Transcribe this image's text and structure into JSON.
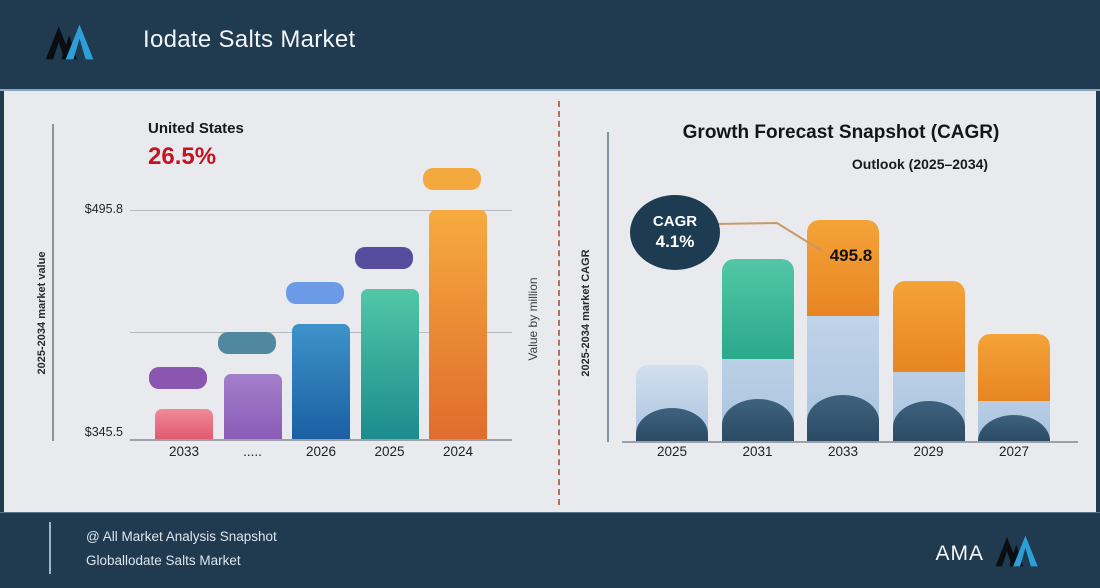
{
  "header": {
    "title": "Iodate Salts Market"
  },
  "left_chart": {
    "region_label": "United States",
    "region_value": "26.5%",
    "y_axis_label": "2025-2034 market value",
    "side_note": "Value by million",
    "y_tick_top": "$495.8",
    "y_tick_bottom": "$345.5"
  },
  "right_chart": {
    "title": "Growth Forecast Snapshot (CAGR)",
    "subtitle": "Outlook (2025–2034)",
    "y_axis_label": "2025-2034 market CAGR",
    "badge_label": "CAGR",
    "badge_value": "4.1%",
    "data_label": "495.8"
  },
  "footer": {
    "credit_line1": "@ All Market Analysis Snapshot",
    "credit_line2": "Globallodate Salts Market",
    "brand": "AMA"
  },
  "colors": {
    "header_bg": "#203a50",
    "panel_bg": "#e9eaed",
    "accent_red": "#c41420",
    "badge_navy": "#1d3c52",
    "connector": "#c9996b",
    "divider_dash": "#b4705a",
    "logo_black": "#0b0e11",
    "logo_blue": "#2d9fd8"
  },
  "chart_data": [
    {
      "type": "bar",
      "title": "United States 2025-2034 market value",
      "categories": [
        "2033",
        ".....",
        "2026",
        "2025",
        "2024"
      ],
      "values": [
        365,
        388,
        421,
        444,
        495.8
      ],
      "xlabel": "",
      "ylabel": "2025-2034 market value",
      "ylabel_right": "Value by million",
      "y_ticks": [
        345.5,
        495.8
      ],
      "ylim": [
        345.5,
        530
      ],
      "grid": "horizontal",
      "legend": "none",
      "bar_gradients": [
        [
          "#ef8b99",
          "#e05a6e"
        ],
        [
          "#a37fca",
          "#8a5cb8"
        ],
        [
          "#3d93c9",
          "#1b5fa3"
        ],
        [
          "#52c7a7",
          "#1c8b8d"
        ],
        [
          "#f6ab3f",
          "#e06c2d"
        ]
      ],
      "cap_colors": [
        "#8a56b0",
        "#50889f",
        "#6b9ae6",
        "#584c9e",
        "#f3a93d"
      ]
    },
    {
      "type": "bar",
      "stacked": true,
      "title": "Growth Forecast Snapshot (CAGR)",
      "subtitle": "Outlook (2025–2034)",
      "ylabel": "2025-2034 market CAGR",
      "categories": [
        "2025",
        "2031",
        "2033",
        "2029",
        "2027"
      ],
      "units_note": "relative height units (unlabeled axis)",
      "series": [
        {
          "name": "base",
          "color_top": "#3e627e",
          "color_bottom": "#2b4b64",
          "values": [
            33,
            42,
            46,
            40,
            26
          ]
        },
        {
          "name": "mid",
          "color_top": "#d2e0ee",
          "color_bottom": "#a9c3df",
          "values": [
            43,
            40,
            79,
            29,
            14
          ]
        },
        {
          "name": "top",
          "colors_top": [
            "#d2e0ee",
            "#52c7a7",
            "#f4a337",
            "#f4a337",
            "#f4a337"
          ],
          "colors_bottom": [
            "#a9c3df",
            "#2aa98b",
            "#e88524",
            "#e88524",
            "#e88524"
          ],
          "values": [
            0,
            100,
            96,
            91,
            67
          ]
        }
      ],
      "annotation": {
        "badge": "CAGR 4.1%",
        "target_bar": "2033",
        "target_label": "495.8"
      },
      "legend_position": "none",
      "grid": false
    }
  ]
}
